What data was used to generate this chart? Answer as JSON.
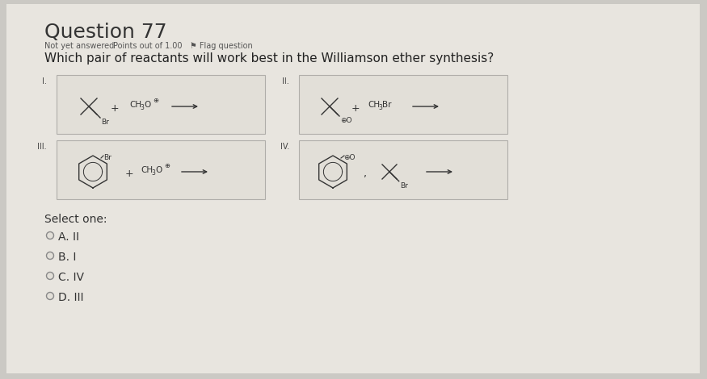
{
  "title": "Question 77",
  "subtitle_left": "Not yet answered",
  "subtitle_mid": "Points out of 1.00",
  "subtitle_right": "⚑ Flag question",
  "question": "Which pair of reactants will work best in the Williamson ether synthesis?",
  "background_color": "#cbc9c4",
  "card_color": "#e8e5df",
  "box_color": "#e8e5df",
  "box_border": "#bbbbbb",
  "select_label": "Select one:",
  "options": [
    "A. II",
    "B. I",
    "C. IV",
    "D. III"
  ],
  "roman_I": "I.",
  "roman_II": "II.",
  "roman_III": "III.",
  "roman_IV": "IV.",
  "font_title": 18,
  "font_question": 11,
  "font_subtitle": 7,
  "font_option": 10,
  "font_chem": 8,
  "title_color": "#333333",
  "subtitle_color": "#555555",
  "text_color": "#222222",
  "chem_color": "#333333"
}
